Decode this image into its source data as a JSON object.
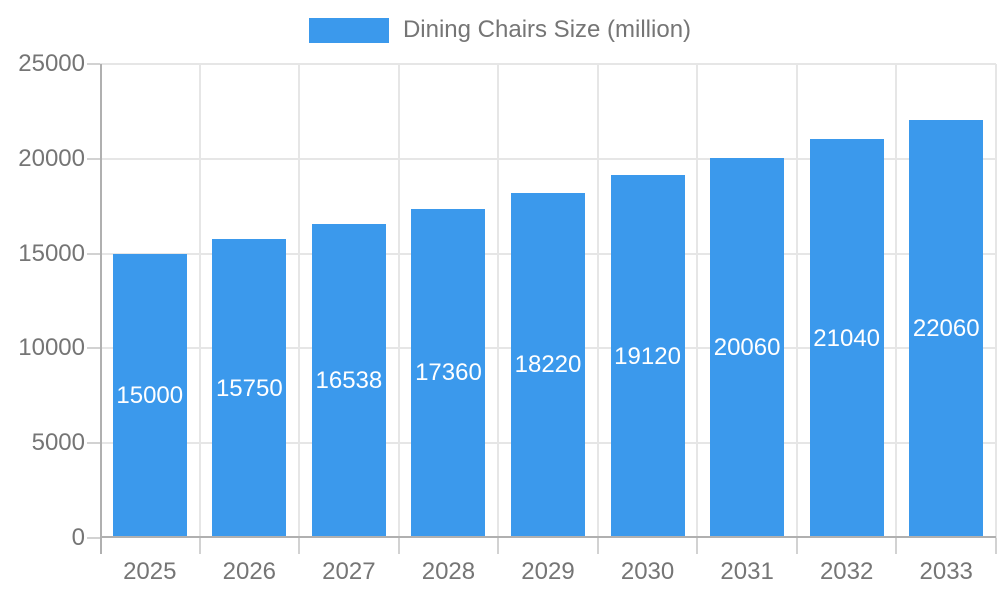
{
  "legend": {
    "label": "Dining Chairs Size (million)"
  },
  "colors": {
    "bar": "#3B99EC",
    "grid_line": "#E6E6E6",
    "axis_line": "#B0B0B0",
    "tick_mark": "#D2D2D2",
    "axis_text": "#757575",
    "bar_label_text": "#FFFFFF",
    "background": "#FFFFFF"
  },
  "chart_data": {
    "type": "bar",
    "title": "Dining Chairs Size (million)",
    "categories": [
      "2025",
      "2026",
      "2027",
      "2028",
      "2029",
      "2030",
      "2031",
      "2032",
      "2033"
    ],
    "values": [
      15000,
      15750,
      16538,
      17360,
      18220,
      19120,
      20060,
      21040,
      22060
    ],
    "bar_labels": [
      "15000",
      "15750",
      "16538",
      "17360",
      "18220",
      "19120",
      "20060",
      "21040",
      "22060"
    ],
    "xlabel": "",
    "ylabel": "",
    "ylim": [
      0,
      25000
    ],
    "yticks": [
      0,
      5000,
      10000,
      15000,
      20000,
      25000
    ],
    "ytick_labels": [
      "0",
      "5000",
      "10000",
      "15000",
      "20000",
      "25000"
    ],
    "grid": true,
    "legend_position": "top",
    "bar_label_position": "center"
  }
}
